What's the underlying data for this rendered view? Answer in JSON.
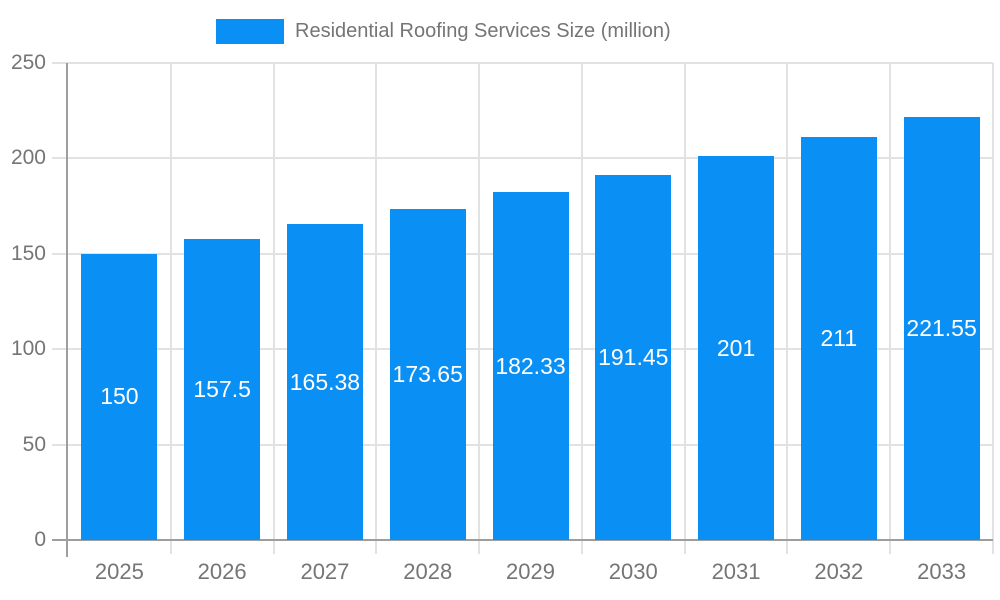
{
  "chart_data": {
    "type": "bar",
    "title": "Residential Roofing Services Size (million)",
    "categories": [
      "2025",
      "2026",
      "2027",
      "2028",
      "2029",
      "2030",
      "2031",
      "2032",
      "2033"
    ],
    "values": [
      150,
      157.5,
      165.38,
      173.65,
      182.33,
      191.45,
      201,
      211,
      221.55
    ],
    "value_labels": [
      "150",
      "157.5",
      "165.38",
      "173.65",
      "182.33",
      "191.45",
      "201",
      "211",
      "221.55"
    ],
    "series": [
      {
        "name": "Residential Roofing Services Size (million)",
        "values": [
          150,
          157.5,
          165.38,
          173.65,
          182.33,
          191.45,
          201,
          211,
          221.55
        ]
      }
    ],
    "xlabel": "",
    "ylabel": "",
    "ylim": [
      0,
      250
    ],
    "yticks": [
      0,
      50,
      100,
      150,
      200,
      250
    ],
    "grid": true,
    "legend_position": "top-center",
    "colors": {
      "bar": "#0a8ff5",
      "bar_label": "#ffffff",
      "gridline": "#e2e2e2",
      "axis_line": "#9e9e9e",
      "tick_text": "#757575",
      "legend_text": "#757575",
      "background": "#ffffff"
    }
  }
}
